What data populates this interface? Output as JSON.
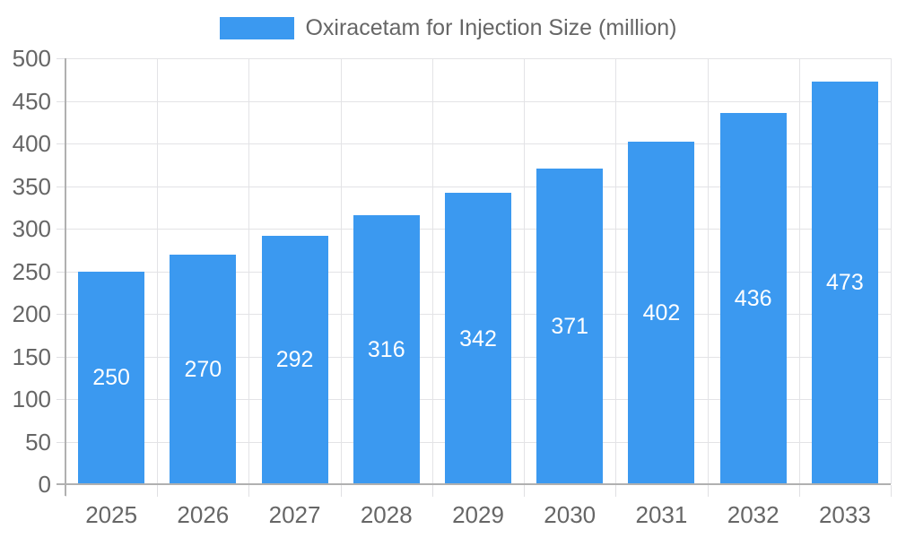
{
  "chart_data": {
    "type": "bar",
    "series_name": "Oxiracetam for Injection Size (million)",
    "categories": [
      "2025",
      "2026",
      "2027",
      "2028",
      "2029",
      "2030",
      "2031",
      "2032",
      "2033"
    ],
    "values": [
      250,
      270,
      292,
      316,
      342,
      371,
      402,
      436,
      473
    ],
    "yticks": [
      0,
      50,
      100,
      150,
      200,
      250,
      300,
      350,
      400,
      450,
      500
    ],
    "ylim": [
      0,
      500
    ],
    "grid": "on",
    "legend_position": "top",
    "value_labels": "inside-center",
    "colors": {
      "bar": "#3B99F0",
      "legend_text": "#666666",
      "axis_label": "#666666",
      "grid_line": "#e3e3e6",
      "axis_line": "#b0b0b0",
      "tick_line": "#e0e0e3",
      "value_label": "#ffffff",
      "background": "#ffffff"
    }
  }
}
